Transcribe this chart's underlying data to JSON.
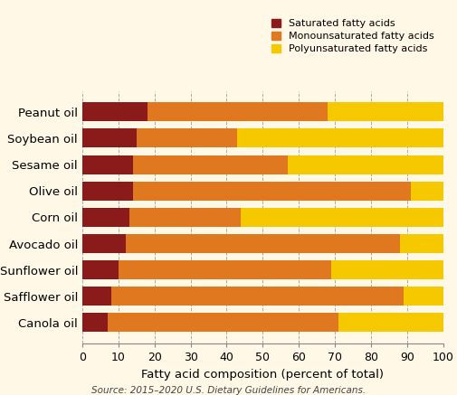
{
  "categories": [
    "Peanut oil",
    "Soybean oil",
    "Sesame oil",
    "Olive oil",
    "Corn oil",
    "Avocado oil",
    "Sunflower oil",
    "Safflower oil",
    "Canola oil"
  ],
  "saturated": [
    18,
    15,
    14,
    14,
    13,
    12,
    10,
    8,
    7
  ],
  "monounsaturated": [
    50,
    28,
    43,
    77,
    31,
    76,
    59,
    81,
    64
  ],
  "polyunsaturated": [
    32,
    57,
    43,
    9,
    56,
    12,
    31,
    11,
    29
  ],
  "color_saturated": "#8B1A1A",
  "color_mono": "#E07820",
  "color_poly": "#F5C800",
  "background": "#FFF8E7",
  "xlabel": "Fatty acid composition (percent of total)",
  "source": "Source: 2015–2020 U.S. Dietary Guidelines for Americans.",
  "legend_labels": [
    "Saturated fatty acids",
    "Monounsaturated fatty acids",
    "Polyunsaturated fatty acids"
  ],
  "xlim": [
    0,
    100
  ],
  "xticks": [
    0,
    10,
    20,
    30,
    40,
    50,
    60,
    70,
    80,
    90,
    100
  ]
}
